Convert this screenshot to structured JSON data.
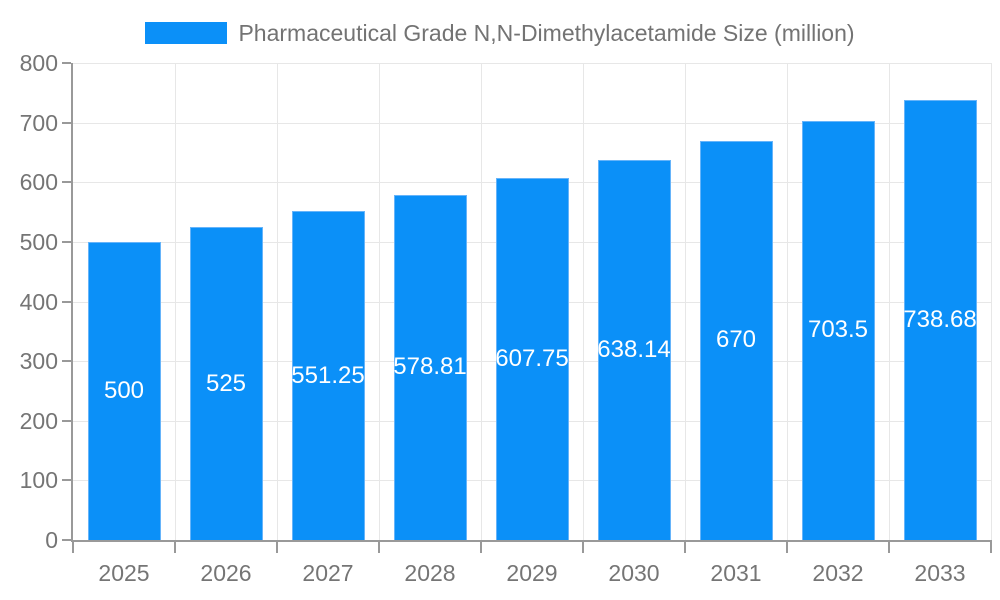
{
  "chart_data": {
    "type": "bar",
    "title": "Pharmaceutical Grade N,N-Dimethylacetamide Size (million)",
    "legend": {
      "position": "top",
      "label": "Pharmaceutical Grade N,N-Dimethylacetamide Size (million)"
    },
    "categories": [
      "2025",
      "2026",
      "2027",
      "2028",
      "2029",
      "2030",
      "2031",
      "2032",
      "2033"
    ],
    "series": [
      {
        "name": "Pharmaceutical Grade N,N-Dimethylacetamide Size (million)",
        "values": [
          500,
          525,
          551.25,
          578.81,
          607.75,
          638.14,
          670,
          703.5,
          738.68
        ]
      }
    ],
    "value_labels": [
      "500",
      "525",
      "551.25",
      "578.81",
      "607.75",
      "638.14",
      "670",
      "703.5",
      "738.68"
    ],
    "xlabel": "",
    "ylabel": "",
    "ylim": [
      0,
      800
    ],
    "yticks": [
      0,
      100,
      200,
      300,
      400,
      500,
      600,
      700,
      800
    ],
    "grid": "on",
    "legend_position": "top-center",
    "colors": {
      "bar": "#0b90f8",
      "bar_edge": "#66b4fa",
      "axis": "#999999",
      "gridline": "#e7e7e7",
      "tick_label": "#757575",
      "title": "#737373",
      "value_label": "#ffffff",
      "background": "#ffffff"
    }
  }
}
